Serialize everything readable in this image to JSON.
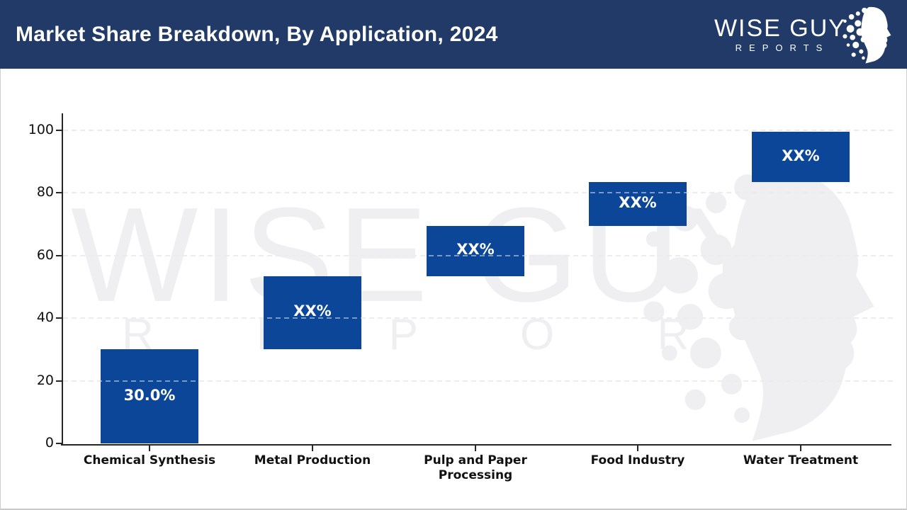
{
  "header": {
    "title": "Market Share Breakdown, By Application, 2024",
    "logo": {
      "line1": "WISE GUY",
      "line2": "REPORTS"
    }
  },
  "watermark": {
    "line1": "WISE GUY",
    "line2": "R E P O R T S"
  },
  "colors": {
    "header_bg": "#213A67",
    "bar": "#0B4698",
    "bar_label": "#FFFFFF",
    "grid": "#DCDCDC",
    "axis": "#262626",
    "watermark": "#EFEFF2",
    "title_text": "#FFFFFF"
  },
  "chart_data": {
    "type": "bar",
    "subtype": "waterfall",
    "title": "Market Share Breakdown, By Application, 2024",
    "xlabel": "",
    "ylabel": "",
    "ylim": [
      0,
      105
    ],
    "yticks": [
      0,
      20,
      40,
      60,
      80,
      100
    ],
    "grid": "dashed horizontal",
    "legend": "none",
    "categories": [
      "Chemical Synthesis",
      "Metal Production",
      "Pulp and Paper Processing",
      "Food Industry",
      "Water Treatment"
    ],
    "bars": [
      {
        "category": "Chemical Synthesis",
        "start": 0,
        "end": 30,
        "label": "30.0%"
      },
      {
        "category": "Metal Production",
        "start": 30,
        "end": 53.5,
        "label": "XX%"
      },
      {
        "category": "Pulp and Paper Processing",
        "start": 53.5,
        "end": 69.5,
        "label": "XX%"
      },
      {
        "category": "Food Industry",
        "start": 69.5,
        "end": 83.5,
        "label": "XX%"
      },
      {
        "category": "Water Treatment",
        "start": 83.5,
        "end": 99.5,
        "label": "XX%"
      }
    ]
  }
}
